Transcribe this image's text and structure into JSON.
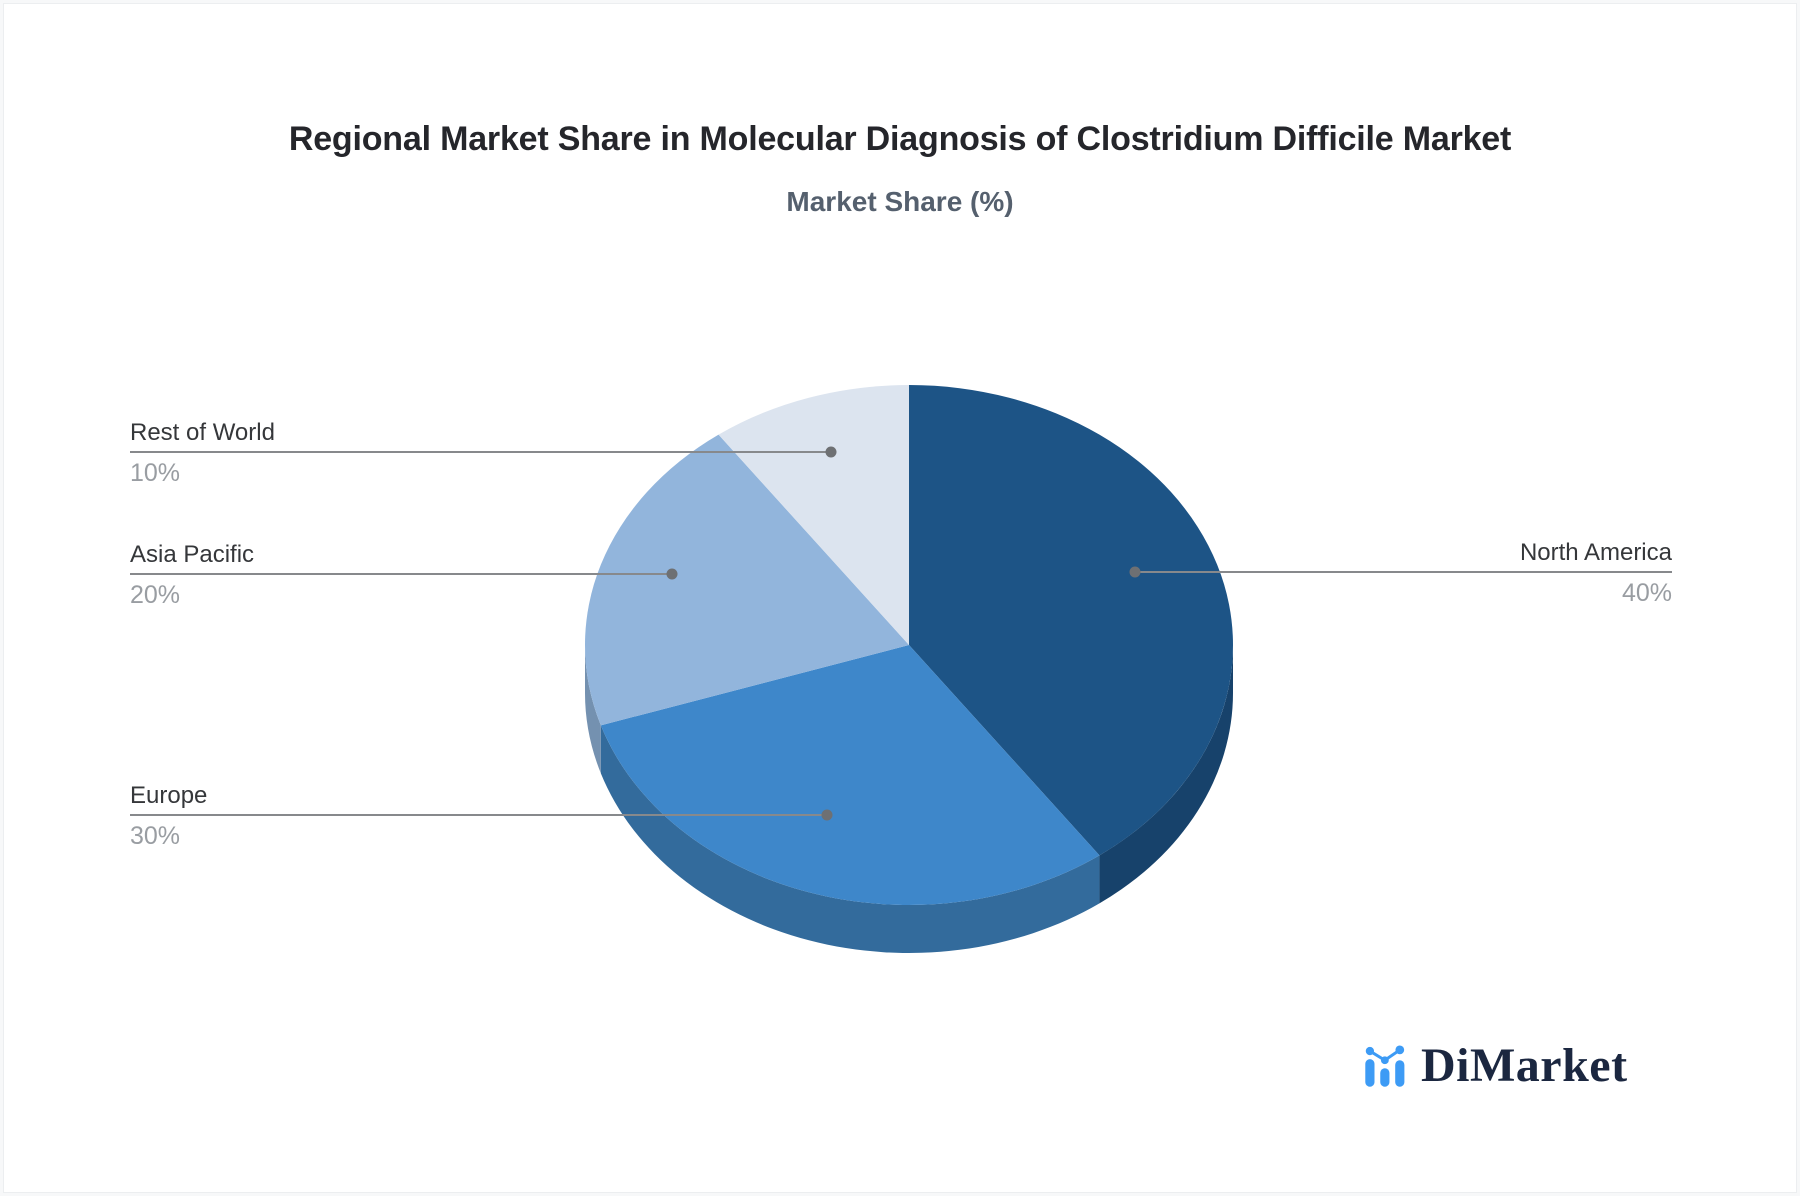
{
  "page": {
    "background_color": "#f7f8f9",
    "card_color": "#ffffff"
  },
  "header": {
    "title": "Regional Market Share in Molecular Diagnosis of Clostridium Difficile Market",
    "subtitle": "Market Share (%)"
  },
  "chart_data": {
    "type": "pie",
    "style": "3d-pie",
    "title": "Regional Market Share in Molecular Diagnosis of Clostridium Difficile Market",
    "subtitle": "Market Share (%)",
    "unit": "%",
    "start_angle_deg": 0,
    "direction": "clockwise",
    "grid": false,
    "legend_position": "callout-labels",
    "slices": [
      {
        "label": "North America",
        "value": 40,
        "display": "40%",
        "color": "#1D5486",
        "side_color": "#17426B",
        "label_side": "right"
      },
      {
        "label": "Europe",
        "value": 30,
        "display": "30%",
        "color": "#3E87CA",
        "side_color": "#336B9C",
        "label_side": "left"
      },
      {
        "label": "Asia Pacific",
        "value": 20,
        "display": "20%",
        "color": "#92B5DC",
        "side_color": "#7491B0",
        "label_side": "left"
      },
      {
        "label": "Rest of World",
        "value": 10,
        "display": "10%",
        "color": "#DCE4EF",
        "side_color": "#B0BBCA",
        "label_side": "left"
      }
    ],
    "callout_line_color": "#87898c",
    "callout_dot_color": "#6e7073"
  },
  "branding": {
    "logo_text": "DiMarket",
    "logo_icon": "bar-line-chart-icon",
    "logo_icon_color": "#3D9BF5",
    "logo_text_color": "#1b2740"
  }
}
